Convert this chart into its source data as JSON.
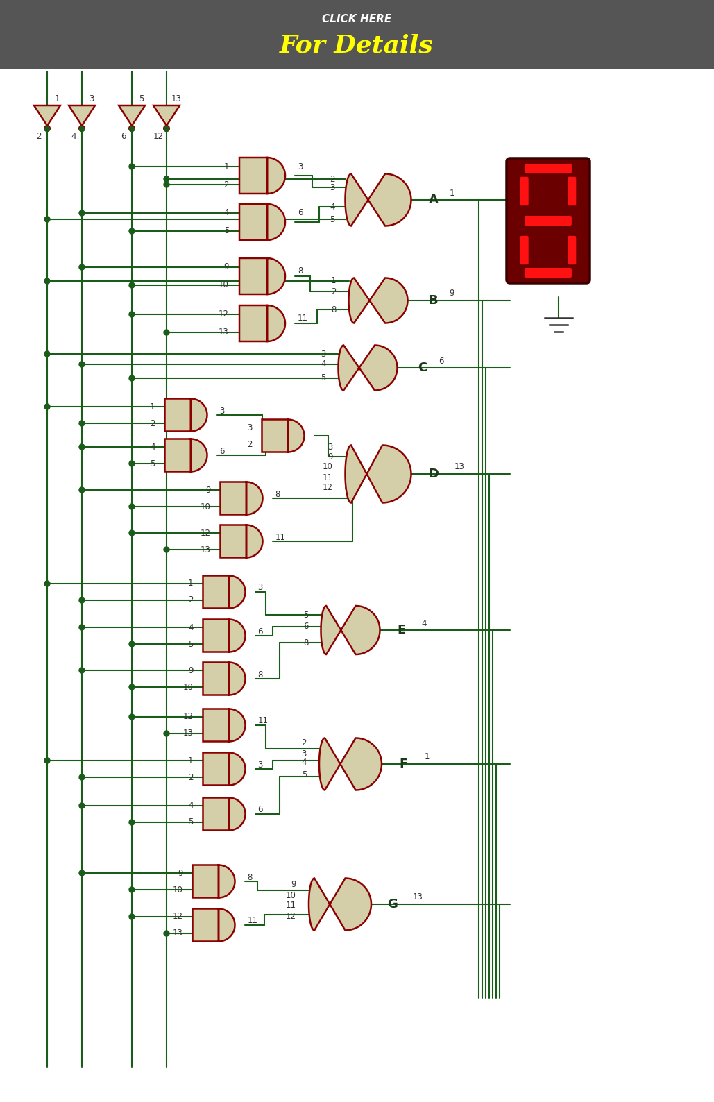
{
  "bg_top_color": "#555555",
  "bg_main_color": "#ffffff",
  "wire_color": "#1a5c1a",
  "gate_fill": "#d4cfa8",
  "gate_edge": "#8b0000",
  "node_color": "#1a5c1a",
  "label_color": "#333333",
  "seg_label_color": "#1a3a1a",
  "click_text": "CLICK HERE",
  "details_text": "For Details",
  "click_color": "#ffffff",
  "details_color": "#ffff00",
  "banner_color": "#555555",
  "input_top_labels": [
    "1",
    "3",
    "5",
    "13"
  ],
  "input_bot_labels": [
    "2",
    "4",
    "6",
    "12"
  ],
  "segment_names": [
    "A",
    "B",
    "C",
    "D",
    "E",
    "F",
    "G"
  ]
}
